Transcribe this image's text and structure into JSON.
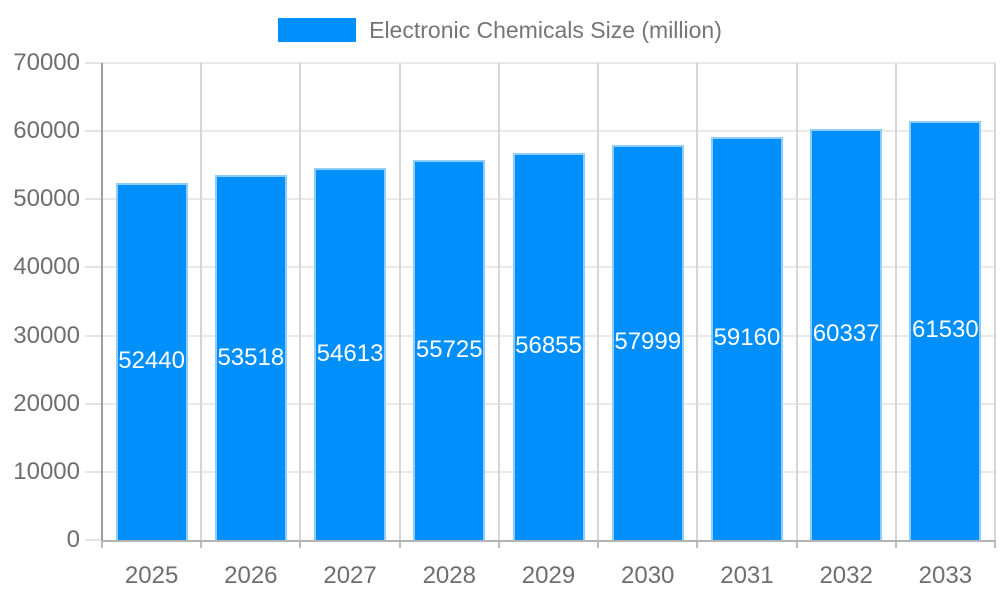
{
  "legend": {
    "label": "Electronic Chemicals Size (million)"
  },
  "chart_data": {
    "type": "bar",
    "title": "Electronic Chemicals Size (million)",
    "categories": [
      "2025",
      "2026",
      "2027",
      "2028",
      "2029",
      "2030",
      "2031",
      "2032",
      "2033"
    ],
    "series": [
      {
        "name": "Electronic Chemicals Size (million)",
        "values": [
          52440,
          53518,
          54613,
          55725,
          56855,
          57999,
          59160,
          60337,
          61530
        ]
      }
    ],
    "ylim": [
      0,
      70000
    ],
    "ytick_step": 10000,
    "ytick_labels": [
      "0",
      "10000",
      "20000",
      "30000",
      "40000",
      "50000",
      "60000",
      "70000"
    ],
    "grid": true,
    "legend_position": "top",
    "data_labels": "inside-center",
    "colors": {
      "bar_fill": "#008FFB",
      "bar_stroke": "#8FCDF9",
      "data_label_text": "#FFFFFF",
      "axis_text": "#6E6E6E",
      "legend_text": "#757575",
      "grid_horizontal": "#E9E9E9",
      "grid_vertical": "#D6D6D6",
      "y_axis_line": "#9E9E9E",
      "x_axis_line": "#B3B3B3"
    }
  }
}
